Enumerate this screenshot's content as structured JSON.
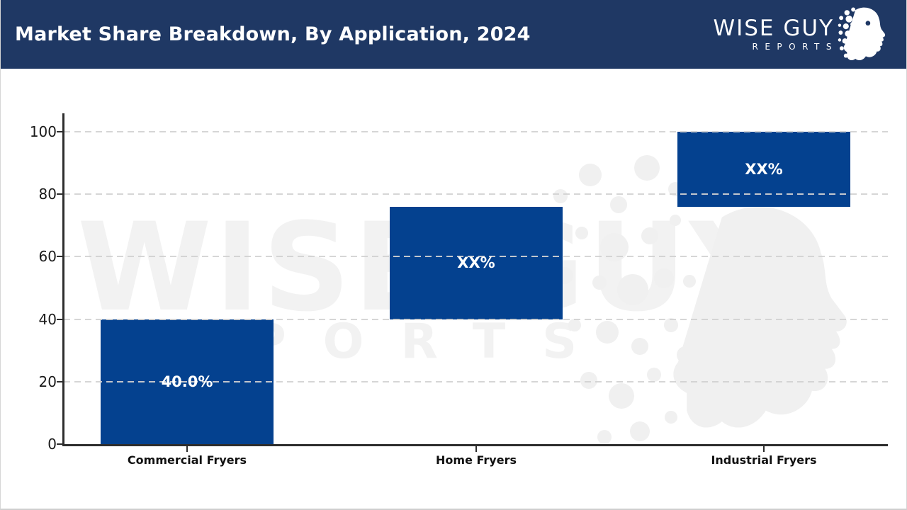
{
  "header": {
    "title": "Market Share Breakdown, By Application, 2024",
    "bg_color": "#1f3864",
    "logo": {
      "line1": "WISE GUY",
      "line2": "REPORTS"
    }
  },
  "watermark": {
    "line1": "WISE GUY",
    "line2": "REPORTS"
  },
  "chart_data": {
    "type": "bar",
    "subtype": "floating-waterfall",
    "title": "Market Share Breakdown, By Application, 2024",
    "categories": [
      "Commercial Fryers",
      "Home Fryers",
      "Industrial Fryers"
    ],
    "series": [
      {
        "name": "Market Share %",
        "segments": [
          {
            "category": "Commercial Fryers",
            "start": 0,
            "end": 40,
            "label": "40.0%"
          },
          {
            "category": "Home Fryers",
            "start": 40,
            "end": 76,
            "label": "XX%"
          },
          {
            "category": "Industrial Fryers",
            "start": 76,
            "end": 100,
            "label": "XX%"
          }
        ]
      }
    ],
    "xlabel": "",
    "ylabel": "",
    "ylim": [
      0,
      100
    ],
    "yticks": [
      0,
      20,
      40,
      60,
      80,
      100
    ],
    "grid": true,
    "gridline_style": "dashed",
    "legend": "none",
    "bar_color": "#04418f",
    "label_color": "#ffffff",
    "axis_color": "#2d2d2d",
    "grid_color": "#d9d9d9"
  }
}
